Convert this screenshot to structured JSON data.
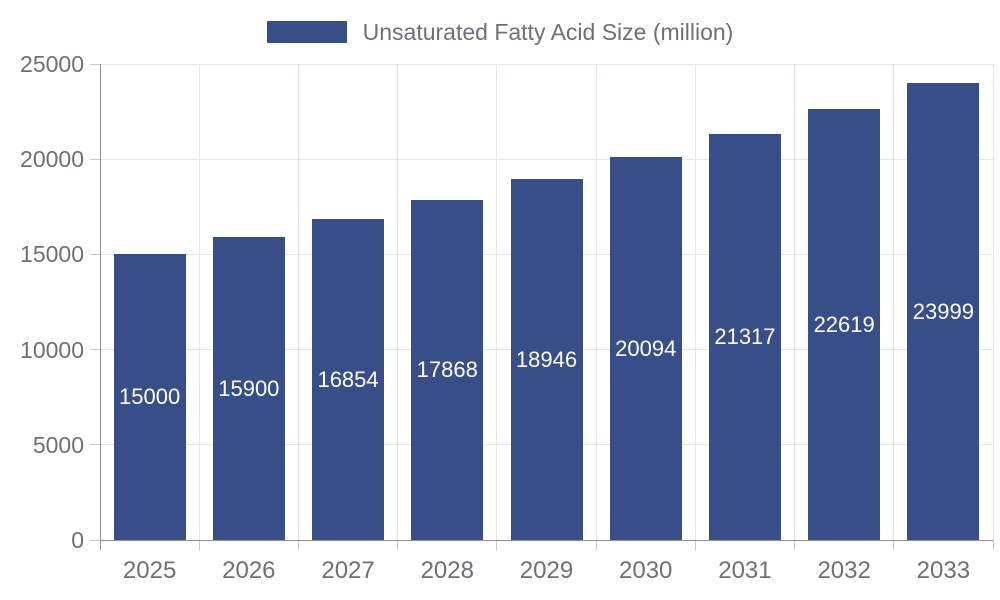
{
  "chart_data": {
    "type": "bar",
    "title": "Unsaturated Fatty Acid Size (million)",
    "legend_entries": [
      "Unsaturated Fatty Acid Size (million)"
    ],
    "legend_position": "top-center",
    "categories": [
      "2025",
      "2026",
      "2027",
      "2028",
      "2029",
      "2030",
      "2031",
      "2032",
      "2033"
    ],
    "values": [
      15000,
      15900,
      16854,
      17868,
      18946,
      20094,
      21317,
      22619,
      23999
    ],
    "xlabel": "",
    "ylabel": "",
    "ylim": [
      0,
      25000
    ],
    "yticks": [
      0,
      5000,
      10000,
      15000,
      20000,
      25000
    ],
    "grid": true,
    "bar_value_labels": "inside-center",
    "colors": {
      "bar": "#374E88",
      "bar_label": "#FFFFFF",
      "axis_text": "#6E7079",
      "axis_line": "#8F9094",
      "gridline": "#E4E7EE",
      "tick": "#C6C9D0",
      "background": "#FFFFFF"
    }
  }
}
